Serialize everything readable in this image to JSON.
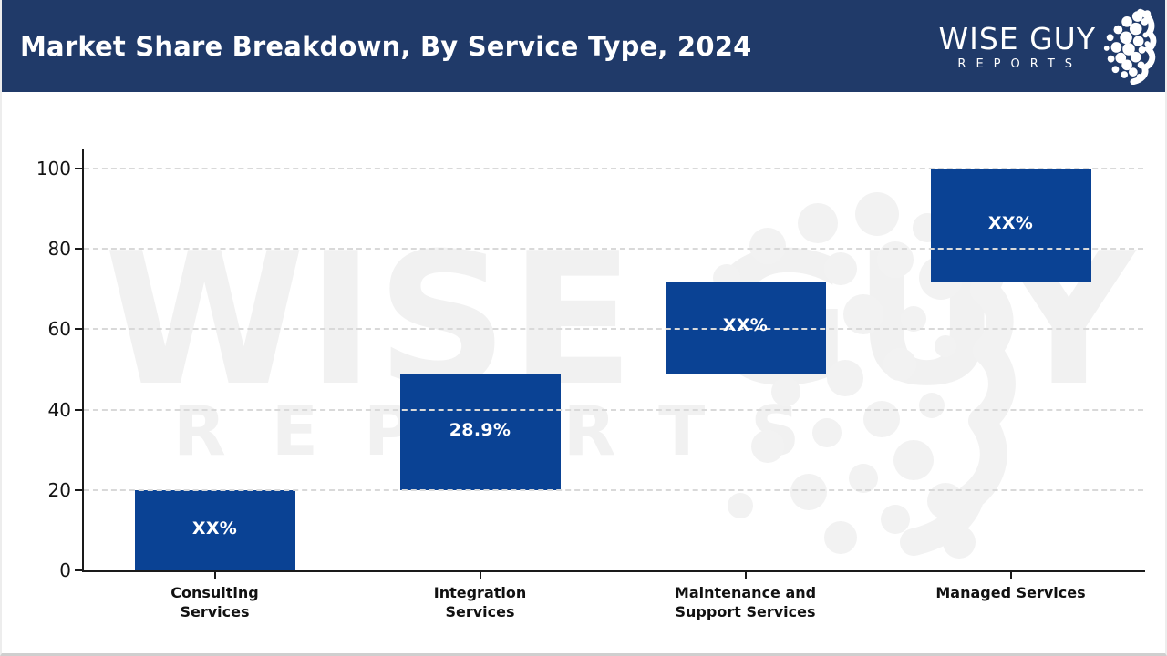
{
  "header": {
    "title": "Market Share Breakdown, By Service Type, 2024",
    "bg_color": "#203a69",
    "logo": {
      "line1": "WISE GUY",
      "line2": "REPORTS"
    }
  },
  "watermark": {
    "line1": "WISE GUY",
    "line2": "REPORTS"
  },
  "chart_data": {
    "type": "bar",
    "subtype": "waterfall",
    "title": "Market Share Breakdown, By Service Type, 2024",
    "categories": [
      "Consulting Services",
      "Integration Services",
      "Maintenance and Support Services",
      "Managed Services"
    ],
    "category_lines": [
      [
        "Consulting",
        "Services"
      ],
      [
        "Integration",
        "Services"
      ],
      [
        "Maintenance and",
        "Support Services"
      ],
      [
        "Managed Services"
      ]
    ],
    "segments": [
      {
        "category": "Consulting Services",
        "start": 0,
        "end": 20,
        "label": "XX%"
      },
      {
        "category": "Integration Services",
        "start": 20,
        "end": 48.9,
        "label": "28.9%"
      },
      {
        "category": "Maintenance and Support Services",
        "start": 48.9,
        "end": 72,
        "label": "XX%"
      },
      {
        "category": "Managed Services",
        "start": 72,
        "end": 100,
        "label": "XX%"
      }
    ],
    "yticks": [
      0,
      20,
      40,
      60,
      80,
      100
    ],
    "ylim": [
      0,
      105
    ],
    "xlabel": "",
    "ylabel": "",
    "grid": "horizontal-dashed",
    "legend": "none",
    "bar_color": "#0a4294",
    "bar_label_color": "#ffffff",
    "axis_color": "#1a1a1a"
  }
}
